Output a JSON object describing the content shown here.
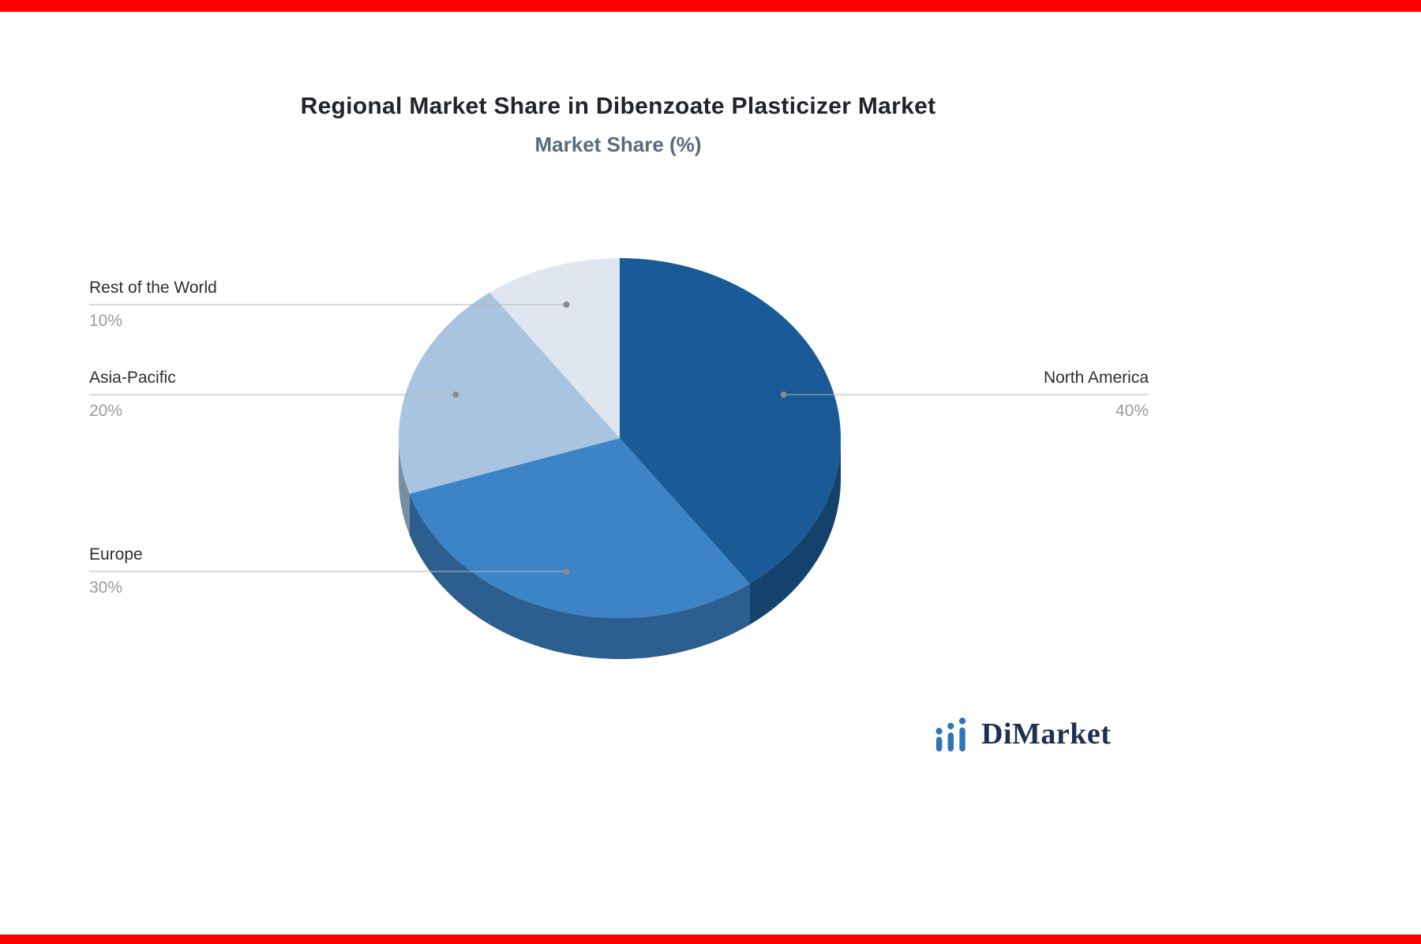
{
  "page": {
    "background": "#ffffff",
    "border_color": "#fe0000"
  },
  "header": {
    "title": "Regional Market Share in Dibenzoate Plasticizer Market",
    "subtitle": "Market Share (%)"
  },
  "brand": {
    "name": "DiMarket",
    "icon": "bar-chart-logo-icon",
    "icon_color": "#2e73b8",
    "text_color": "#1d3050"
  },
  "chart_data": {
    "type": "pie",
    "title": "Regional Market Share in Dibenzoate Plasticizer Market",
    "subtitle": "Market Share (%)",
    "unit": "%",
    "effect": "3d",
    "start_angle_deg": -90,
    "direction": "clockwise",
    "legend_position": "none",
    "slices": [
      {
        "label": "North America",
        "value": 40,
        "display": "40%",
        "color": "#1a5b97"
      },
      {
        "label": "Europe",
        "value": 30,
        "display": "30%",
        "color": "#3d84c6"
      },
      {
        "label": "Asia-Pacific",
        "value": 20,
        "display": "20%",
        "color": "#a9c4e0"
      },
      {
        "label": "Rest of the World",
        "value": 10,
        "display": "10%",
        "color": "#dfe6f0"
      }
    ],
    "leader_line_color": "#b5b5b5",
    "leader_dot_color": "#8a8a8a"
  }
}
